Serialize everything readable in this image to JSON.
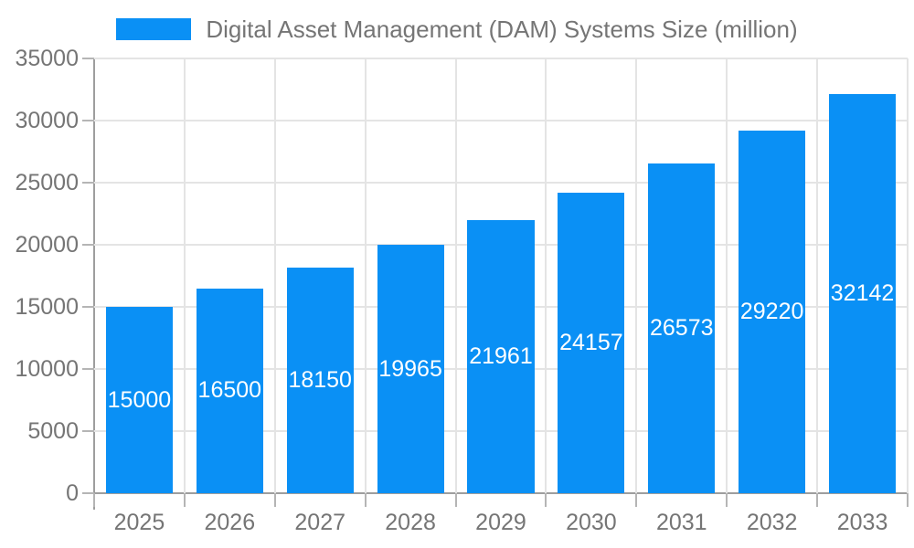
{
  "chart_data": {
    "type": "bar",
    "title": "Digital Asset Management (DAM) Systems Size (million)",
    "categories": [
      "2025",
      "2026",
      "2027",
      "2028",
      "2029",
      "2030",
      "2031",
      "2032",
      "2033"
    ],
    "series": [
      {
        "name": "Digital Asset Management (DAM) Systems Size (million)",
        "values": [
          15000,
          16500,
          18150,
          19965,
          21961,
          24157,
          26573,
          29220,
          32142
        ]
      }
    ],
    "value_labels": [
      15000,
      16500,
      18150,
      19965,
      21961,
      24157,
      26573,
      29220,
      32142
    ],
    "xlabel": "",
    "ylabel": "",
    "ylim": [
      0,
      35000
    ],
    "ytick_step": 5000,
    "ytick_labels": [
      "0",
      "5000",
      "10000",
      "15000",
      "20000",
      "25000",
      "30000",
      "35000"
    ],
    "grid": true,
    "legend_position": "top-center",
    "value_label_position": "inside-center"
  },
  "colors": {
    "bar": "#0a90f5",
    "grid": "#e4e4e4",
    "axis_line": "#9e9e9e",
    "tick": "#b5b5b5",
    "axis_text": "#757575",
    "legend_text": "#757575",
    "bar_label_text": "#ffffff",
    "background": "#ffffff"
  }
}
